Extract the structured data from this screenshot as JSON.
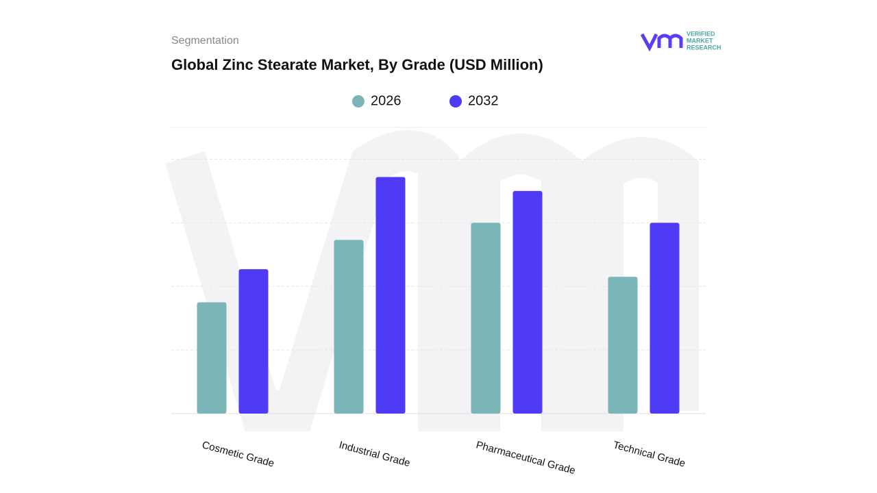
{
  "chart_data": {
    "type": "bar",
    "subtitle": "Segmentation",
    "title": "Global Zinc Stearate Market, By Grade (USD Million)",
    "logo_text": [
      "VERIFIED",
      "MARKET",
      "RESEARCH"
    ],
    "categories": [
      "Cosmetic Grade",
      "Industrial  Grade",
      "Pharmaceutical Grade",
      "Technical  Grade"
    ],
    "series": [
      {
        "name": "2026",
        "color": "#7ab5b8",
        "values": [
          1.75,
          2.73,
          3.0,
          2.15
        ]
      },
      {
        "name": "2032",
        "color": "#4f3bf5",
        "values": [
          2.27,
          3.72,
          3.5,
          3.0
        ]
      }
    ],
    "ylim": [
      0,
      4.5
    ],
    "yticks": [
      1,
      2,
      3,
      4
    ],
    "grid": true
  }
}
